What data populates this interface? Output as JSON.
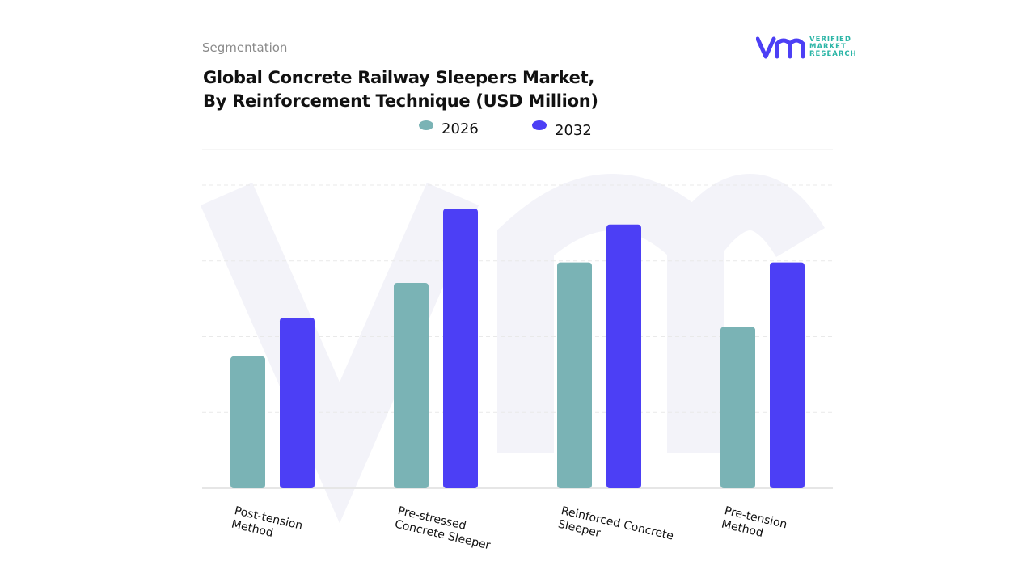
{
  "header": {
    "section": "Segmentation",
    "brand": "VERIFIED\nMARKET\nRESEARCH"
  },
  "chart_data": {
    "type": "bar",
    "title": "Global Concrete Railway Sleepers Market,\nBy Reinforcement Technique (USD Million)",
    "categories": [
      "Post-tension\nMethod",
      "Pre-stressed\nConcrete Sleeper",
      "Reinforced Concrete\nSleeper",
      "Pre-tension\nMethod"
    ],
    "series": [
      {
        "name": "2026",
        "color": "#7ab3b5",
        "values": [
          1.74,
          2.71,
          2.98,
          2.13
        ]
      },
      {
        "name": "2032",
        "color": "#4c3ff5",
        "values": [
          2.25,
          3.69,
          3.48,
          2.98
        ]
      }
    ],
    "ylim": [
      0,
      4
    ],
    "yticks": [
      0,
      1,
      2,
      3,
      4
    ],
    "grid": true,
    "tick_labels": false
  }
}
